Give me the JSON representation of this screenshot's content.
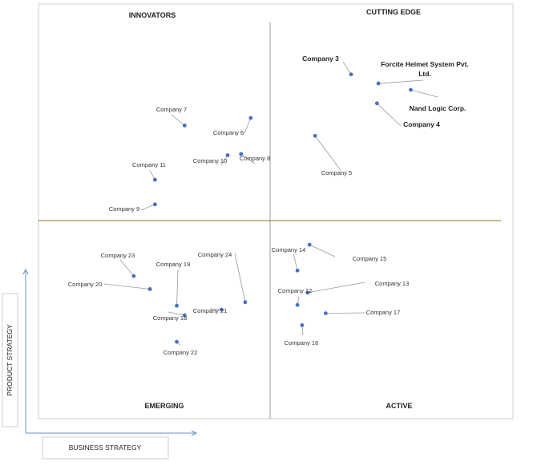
{
  "chart_data": {
    "type": "scatter",
    "quadrants": {
      "top_left": "INNOVATORS",
      "top_right": "CUTTING EDGE",
      "bottom_left": "EMERGING",
      "bottom_right": "ACTIVE"
    },
    "xlabel": "BUSINESS STRATEGY",
    "ylabel": "PRODUCT STRATEGY",
    "xlim": [
      0,
      100
    ],
    "ylim": [
      0,
      100
    ],
    "grid": false,
    "points": [
      {
        "name": "Company 3",
        "x": 67.6,
        "y": 86.9,
        "bold": true
      },
      {
        "name": "Forcite Helmet System Pvt. Ltd.",
        "x": 73.5,
        "y": 84.6,
        "bold": true
      },
      {
        "name": "Nand Logic Corp.",
        "x": 80.5,
        "y": 83.0,
        "bold": true
      },
      {
        "name": "Company 4",
        "x": 73.2,
        "y": 79.6,
        "bold": true
      },
      {
        "name": "Company 5",
        "x": 59.8,
        "y": 71.4,
        "bold": false
      },
      {
        "name": "Company 7",
        "x": 31.6,
        "y": 74.0,
        "bold": false
      },
      {
        "name": "Company 6",
        "x": 45.9,
        "y": 75.9,
        "bold": false
      },
      {
        "name": "Company 10",
        "x": 40.9,
        "y": 66.5,
        "bold": false
      },
      {
        "name": "Company 8",
        "x": 43.8,
        "y": 66.8,
        "bold": false
      },
      {
        "name": "Company 11",
        "x": 25.2,
        "y": 60.3,
        "bold": false
      },
      {
        "name": "Company 9",
        "x": 25.2,
        "y": 54.1,
        "bold": false
      },
      {
        "name": "Company 23",
        "x": 20.6,
        "y": 36.0,
        "bold": false
      },
      {
        "name": "Company 20",
        "x": 24.1,
        "y": 32.7,
        "bold": false
      },
      {
        "name": "Company 19",
        "x": 29.9,
        "y": 28.5,
        "bold": false
      },
      {
        "name": "Company 24",
        "x": 44.7,
        "y": 29.4,
        "bold": false
      },
      {
        "name": "Company 18",
        "x": 31.6,
        "y": 26.1,
        "bold": false
      },
      {
        "name": "Company 21",
        "x": 39.6,
        "y": 27.5,
        "bold": false
      },
      {
        "name": "Company 22",
        "x": 29.9,
        "y": 19.4,
        "bold": false
      },
      {
        "name": "Company 14",
        "x": 56.0,
        "y": 37.4,
        "bold": false
      },
      {
        "name": "Company 15",
        "x": 58.6,
        "y": 43.9,
        "bold": false
      },
      {
        "name": "Company 13",
        "x": 58.2,
        "y": 31.8,
        "bold": false
      },
      {
        "name": "Company 12",
        "x": 56.0,
        "y": 28.7,
        "bold": false
      },
      {
        "name": "Company 17",
        "x": 62.1,
        "y": 26.6,
        "bold": false
      },
      {
        "name": "Company 16",
        "x": 57.0,
        "y": 23.6,
        "bold": false
      }
    ]
  }
}
